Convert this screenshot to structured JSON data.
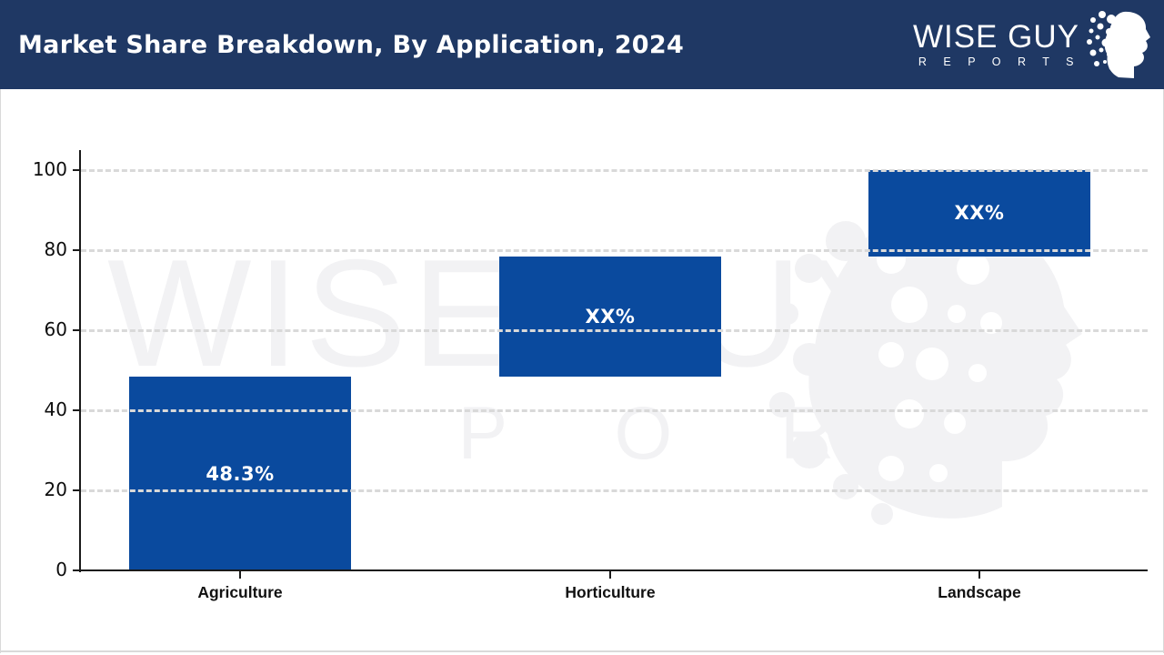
{
  "header": {
    "title": "Market Share Breakdown, By Application, 2024",
    "logo": {
      "brand_line1": "WISE GUY",
      "brand_line2": "R E P O R T S"
    }
  },
  "watermark": {
    "line1": "WISE GUY",
    "line2": "R E P O R T S"
  },
  "chart_data": {
    "type": "bar",
    "variant": "stacked-breakdown-floating-bars",
    "title": "Market Share Breakdown, By Application, 2024",
    "categories": [
      "Agriculture",
      "Horticulture",
      "Landscape"
    ],
    "segments": [
      {
        "category": "Agriculture",
        "start": 0,
        "end": 48.3,
        "label": "48.3%"
      },
      {
        "category": "Horticulture",
        "start": 48.3,
        "end": 78.5,
        "label": "XX%"
      },
      {
        "category": "Landscape",
        "start": 78.5,
        "end": 100,
        "label": "XX%"
      }
    ],
    "ylim": [
      0,
      100
    ],
    "yticks": [
      0,
      20,
      40,
      60,
      80,
      100
    ],
    "xlabel": "",
    "ylabel": "",
    "grid": "horizontal dashed gridlines drawn over bars",
    "legend": "none",
    "colors": {
      "bar": "#0a4a9e",
      "bar_label": "#ffffff",
      "grid": "#d9d9d9",
      "axis": "#1a1a1a",
      "header_bg": "#1f3864",
      "watermark": "#f2f2f4"
    }
  }
}
